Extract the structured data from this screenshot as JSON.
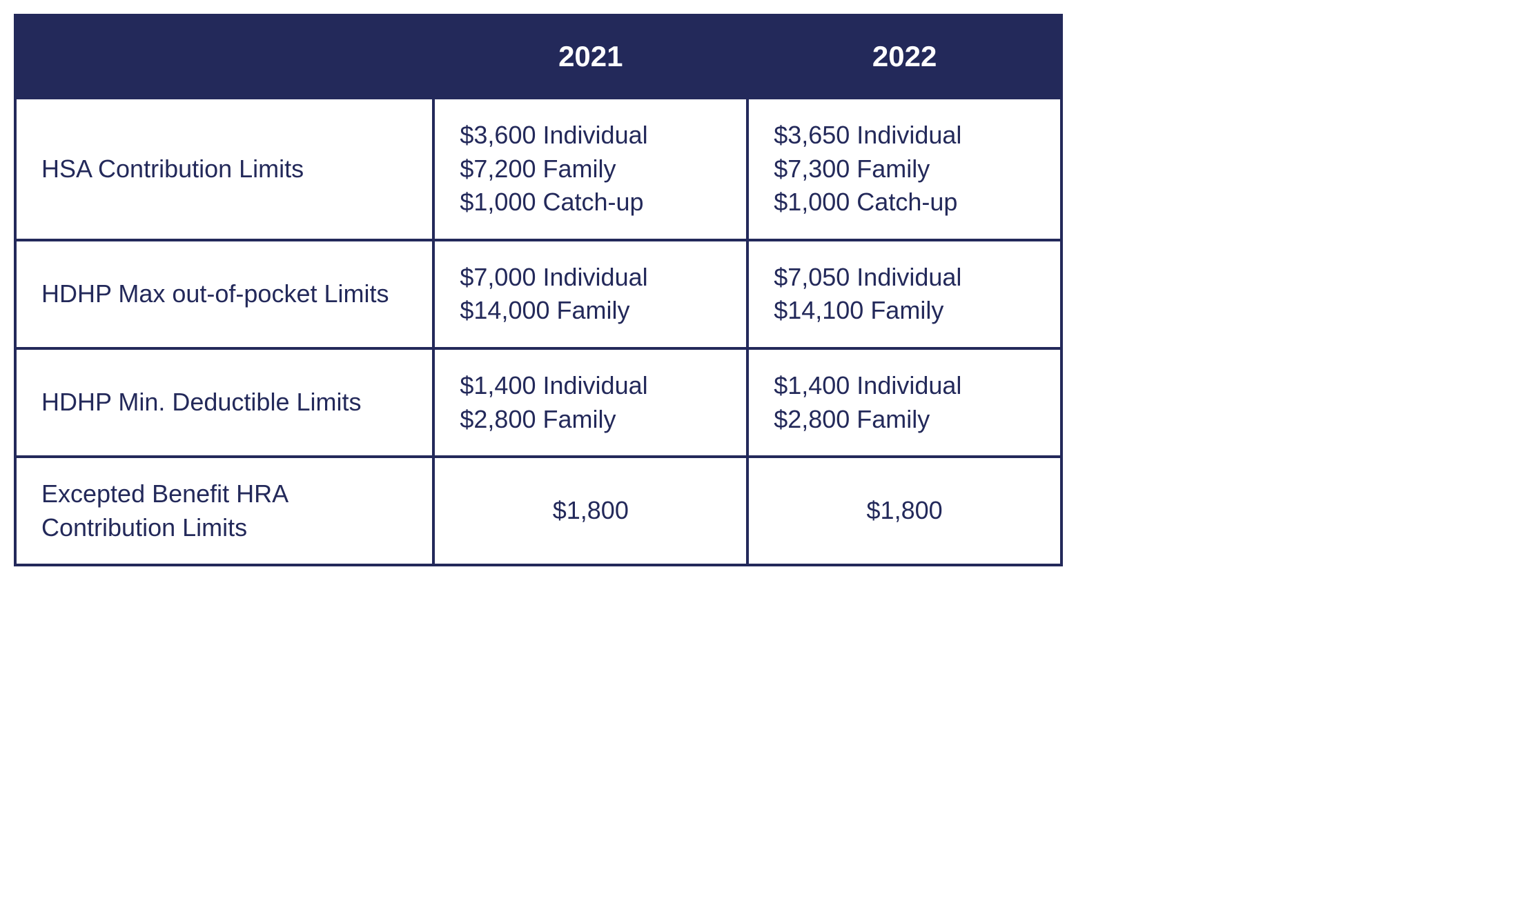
{
  "table": {
    "type": "table",
    "colors": {
      "border": "#23295a",
      "header_bg": "#23295a",
      "header_text": "#ffffff",
      "cell_text": "#23295a",
      "background": "#ffffff"
    },
    "font": {
      "header_size_pt": 32,
      "cell_size_pt": 27,
      "family": "Century Gothic / geometric sans"
    },
    "columns": [
      "",
      "2021",
      "2022"
    ],
    "rows": [
      {
        "label": "HSA Contribution Limits",
        "y2021": [
          "$3,600 Individual",
          "$7,200 Family",
          "$1,000 Catch-up"
        ],
        "y2022": [
          "$3,650 Individual",
          "$7,300 Family",
          "$1,000 Catch-up"
        ],
        "center": false
      },
      {
        "label": "HDHP Max out-of-pocket Limits",
        "y2021": [
          "$7,000 Individual",
          "$14,000 Family"
        ],
        "y2022": [
          "$7,050 Individual",
          "$14,100 Family"
        ],
        "center": false
      },
      {
        "label": "HDHP Min. Deductible Limits",
        "y2021": [
          "$1,400 Individual",
          "$2,800 Family"
        ],
        "y2022": [
          "$1,400 Individual",
          "$2,800 Family"
        ],
        "center": false
      },
      {
        "label": "Excepted Benefit HRA Contribution Limits",
        "y2021": [
          "$1,800"
        ],
        "y2022": [
          "$1,800"
        ],
        "center": true
      }
    ]
  }
}
